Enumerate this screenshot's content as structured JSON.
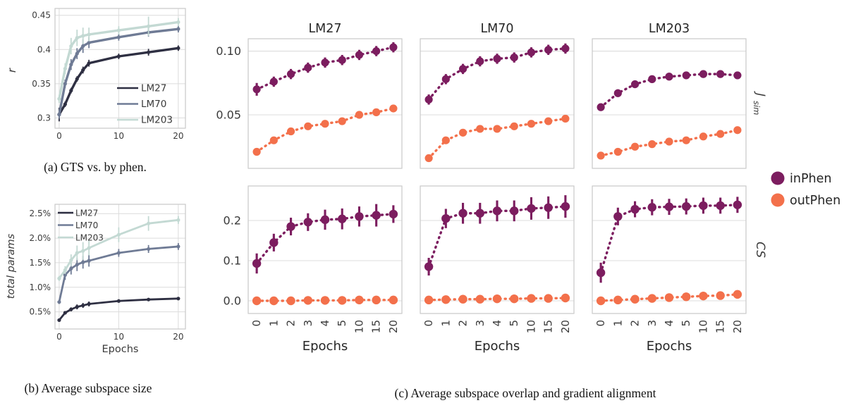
{
  "figure": {
    "captions": {
      "a": "(a) GTS vs. by phen.",
      "b": "(b) Average subspace size",
      "c": "(c) Average subspace overlap and gradient alignment"
    }
  },
  "colors": {
    "LM27": "#2e2f42",
    "LM70": "#6f7b95",
    "LM203": "#c3d9d3",
    "inPhen": "#7c1d5f",
    "outPhen": "#f3704b",
    "grid": "#dcdcdc",
    "spine": "#c9c9c9",
    "tick_text": "#3a3a3a",
    "title_text": "#262626"
  },
  "chart_data": [
    {
      "id": "panel-a",
      "type": "line",
      "title": "",
      "xlabel": "",
      "ylabel": "r",
      "x": [
        0,
        1,
        2,
        3,
        4,
        5,
        10,
        15,
        20
      ],
      "xlim": [
        -0.7,
        21.2
      ],
      "ylim": [
        0.285,
        0.46
      ],
      "xticks": [
        {
          "v": 0,
          "label": "0"
        },
        {
          "v": 10,
          "label": "10"
        },
        {
          "v": 20,
          "label": "20"
        }
      ],
      "yticks": [
        {
          "v": 0.3,
          "label": "0.3"
        },
        {
          "v": 0.35,
          "label": "0.35"
        },
        {
          "v": 0.4,
          "label": "0.4"
        },
        {
          "v": 0.45,
          "label": "0.45"
        }
      ],
      "grid": true,
      "legend_position": "lower right",
      "series": [
        {
          "name": "LM27",
          "values": [
            0.305,
            0.32,
            0.34,
            0.357,
            0.37,
            0.38,
            0.39,
            0.396,
            0.402
          ],
          "errors": [
            0.01,
            0.004,
            0.004,
            0.004,
            0.005,
            0.005,
            0.004,
            0.005,
            0.004
          ]
        },
        {
          "name": "LM70",
          "values": [
            0.305,
            0.35,
            0.378,
            0.394,
            0.405,
            0.41,
            0.418,
            0.425,
            0.43
          ],
          "errors": [
            0.006,
            0.006,
            0.008,
            0.008,
            0.01,
            0.008,
            0.005,
            0.006,
            0.005
          ]
        },
        {
          "name": "LM203",
          "values": [
            0.328,
            0.372,
            0.405,
            0.417,
            0.42,
            0.422,
            0.428,
            0.434,
            0.44
          ],
          "errors": [
            0.006,
            0.008,
            0.012,
            0.012,
            0.012,
            0.01,
            0.006,
            0.014,
            0.006
          ]
        }
      ]
    },
    {
      "id": "panel-b",
      "type": "line",
      "title": "",
      "xlabel": "Epochs",
      "ylabel": "total params",
      "x": [
        0,
        1,
        2,
        3,
        4,
        5,
        10,
        15,
        20
      ],
      "xlim": [
        -0.7,
        21.2
      ],
      "ylim": [
        0.15,
        2.69
      ],
      "xticks": [
        {
          "v": 0,
          "label": "0"
        },
        {
          "v": 10,
          "label": "10"
        },
        {
          "v": 20,
          "label": "20"
        }
      ],
      "yticks": [
        {
          "v": 0.5,
          "label": "0.5%"
        },
        {
          "v": 1.0,
          "label": "1.0%"
        },
        {
          "v": 1.5,
          "label": "1.5%"
        },
        {
          "v": 2.0,
          "label": "2.0%"
        },
        {
          "v": 2.5,
          "label": "2.5%"
        }
      ],
      "grid": true,
      "legend_position": "upper left",
      "series": [
        {
          "name": "LM27",
          "values": [
            0.33,
            0.48,
            0.55,
            0.6,
            0.63,
            0.66,
            0.72,
            0.75,
            0.77
          ],
          "errors": [
            0.02,
            0.03,
            0.04,
            0.05,
            0.05,
            0.05,
            0.03,
            0.03,
            0.03
          ]
        },
        {
          "name": "LM70",
          "values": [
            0.7,
            1.25,
            1.38,
            1.46,
            1.51,
            1.54,
            1.7,
            1.78,
            1.83
          ],
          "errors": [
            0.04,
            0.1,
            0.12,
            0.13,
            0.13,
            0.12,
            0.08,
            0.08,
            0.07
          ]
        },
        {
          "name": "LM203",
          "values": [
            1.18,
            1.35,
            1.55,
            1.7,
            1.74,
            1.8,
            2.07,
            2.3,
            2.37
          ],
          "errors": [
            0.05,
            0.08,
            0.12,
            0.15,
            0.18,
            0.15,
            0.15,
            0.15,
            0.08
          ]
        }
      ]
    },
    {
      "id": "panel-c",
      "type": "scatter",
      "xlabel": "Epochs",
      "categories": [
        "0",
        "1",
        "2",
        "3",
        "4",
        "5",
        "10",
        "15",
        "20"
      ],
      "columns": [
        "LM27",
        "LM70",
        "LM203"
      ],
      "rows": [
        {
          "label": "J",
          "sub": "sim"
        },
        {
          "label": "CS",
          "sub": ""
        }
      ],
      "legend": [
        {
          "name": "inPhen"
        },
        {
          "name": "outPhen"
        }
      ],
      "row_axes": [
        {
          "ylim": [
            0.008,
            0.1097
          ],
          "yticks": [
            {
              "v": 0.1,
              "label": "0.10"
            },
            {
              "v": 0.05,
              "label": "0.05"
            }
          ]
        },
        {
          "ylim": [
            -0.0316,
            0.286
          ],
          "yticks": [
            {
              "v": 0.2,
              "label": "0.2"
            },
            {
              "v": 0.1,
              "label": "0.1"
            },
            {
              "v": 0.0,
              "label": "0.0"
            }
          ]
        }
      ],
      "cells": [
        {
          "row": 0,
          "col": 0,
          "inPhen": {
            "values": [
              0.07,
              0.076,
              0.082,
              0.087,
              0.091,
              0.093,
              0.097,
              0.1,
              0.103
            ],
            "errors": [
              0.005,
              0.004,
              0.004,
              0.004,
              0.004,
              0.004,
              0.004,
              0.004,
              0.004
            ]
          },
          "outPhen": {
            "values": [
              0.021,
              0.03,
              0.037,
              0.041,
              0.043,
              0.045,
              0.05,
              0.052,
              0.055
            ],
            "errors": [
              0.002,
              0.002,
              0.002,
              0.002,
              0.002,
              0.002,
              0.002,
              0.002,
              0.002
            ]
          }
        },
        {
          "row": 0,
          "col": 1,
          "inPhen": {
            "values": [
              0.062,
              0.078,
              0.086,
              0.092,
              0.094,
              0.095,
              0.099,
              0.101,
              0.102
            ],
            "errors": [
              0.004,
              0.004,
              0.004,
              0.004,
              0.004,
              0.004,
              0.004,
              0.004,
              0.004
            ]
          },
          "outPhen": {
            "values": [
              0.016,
              0.03,
              0.036,
              0.039,
              0.039,
              0.041,
              0.043,
              0.045,
              0.047
            ],
            "errors": [
              0.002,
              0.002,
              0.002,
              0.002,
              0.002,
              0.002,
              0.002,
              0.002,
              0.002
            ]
          }
        },
        {
          "row": 0,
          "col": 2,
          "inPhen": {
            "values": [
              0.056,
              0.067,
              0.074,
              0.078,
              0.08,
              0.081,
              0.082,
              0.082,
              0.081
            ],
            "errors": [
              0.003,
              0.003,
              0.003,
              0.003,
              0.003,
              0.003,
              0.003,
              0.003,
              0.003
            ]
          },
          "outPhen": {
            "values": [
              0.018,
              0.021,
              0.025,
              0.027,
              0.029,
              0.03,
              0.033,
              0.035,
              0.038
            ],
            "errors": [
              0.002,
              0.002,
              0.002,
              0.002,
              0.002,
              0.002,
              0.002,
              0.002,
              0.002
            ]
          }
        },
        {
          "row": 1,
          "col": 0,
          "inPhen": {
            "values": [
              0.093,
              0.145,
              0.185,
              0.196,
              0.202,
              0.204,
              0.21,
              0.213,
              0.216
            ],
            "errors": [
              0.025,
              0.022,
              0.022,
              0.022,
              0.025,
              0.026,
              0.025,
              0.028,
              0.022
            ]
          },
          "outPhen": {
            "values": [
              0.0,
              0.0,
              0.0,
              0.001,
              0.001,
              0.001,
              0.002,
              0.002,
              0.002
            ],
            "errors": [
              0.004,
              0.004,
              0.004,
              0.004,
              0.004,
              0.004,
              0.004,
              0.004,
              0.004
            ]
          }
        },
        {
          "row": 1,
          "col": 1,
          "inPhen": {
            "values": [
              0.085,
              0.205,
              0.218,
              0.218,
              0.224,
              0.224,
              0.23,
              0.232,
              0.235
            ],
            "errors": [
              0.022,
              0.024,
              0.026,
              0.026,
              0.026,
              0.026,
              0.028,
              0.028,
              0.028
            ]
          },
          "outPhen": {
            "values": [
              0.002,
              0.003,
              0.004,
              0.004,
              0.005,
              0.005,
              0.006,
              0.006,
              0.007
            ],
            "errors": [
              0.004,
              0.004,
              0.004,
              0.004,
              0.004,
              0.004,
              0.004,
              0.004,
              0.004
            ]
          }
        },
        {
          "row": 1,
          "col": 2,
          "inPhen": {
            "values": [
              0.07,
              0.21,
              0.228,
              0.233,
              0.234,
              0.235,
              0.237,
              0.237,
              0.239
            ],
            "errors": [
              0.025,
              0.022,
              0.02,
              0.02,
              0.02,
              0.02,
              0.02,
              0.02,
              0.02
            ]
          },
          "outPhen": {
            "values": [
              0.0,
              0.002,
              0.004,
              0.006,
              0.008,
              0.01,
              0.012,
              0.013,
              0.016
            ],
            "errors": [
              0.004,
              0.004,
              0.004,
              0.004,
              0.004,
              0.004,
              0.004,
              0.004,
              0.004
            ]
          }
        }
      ]
    }
  ]
}
